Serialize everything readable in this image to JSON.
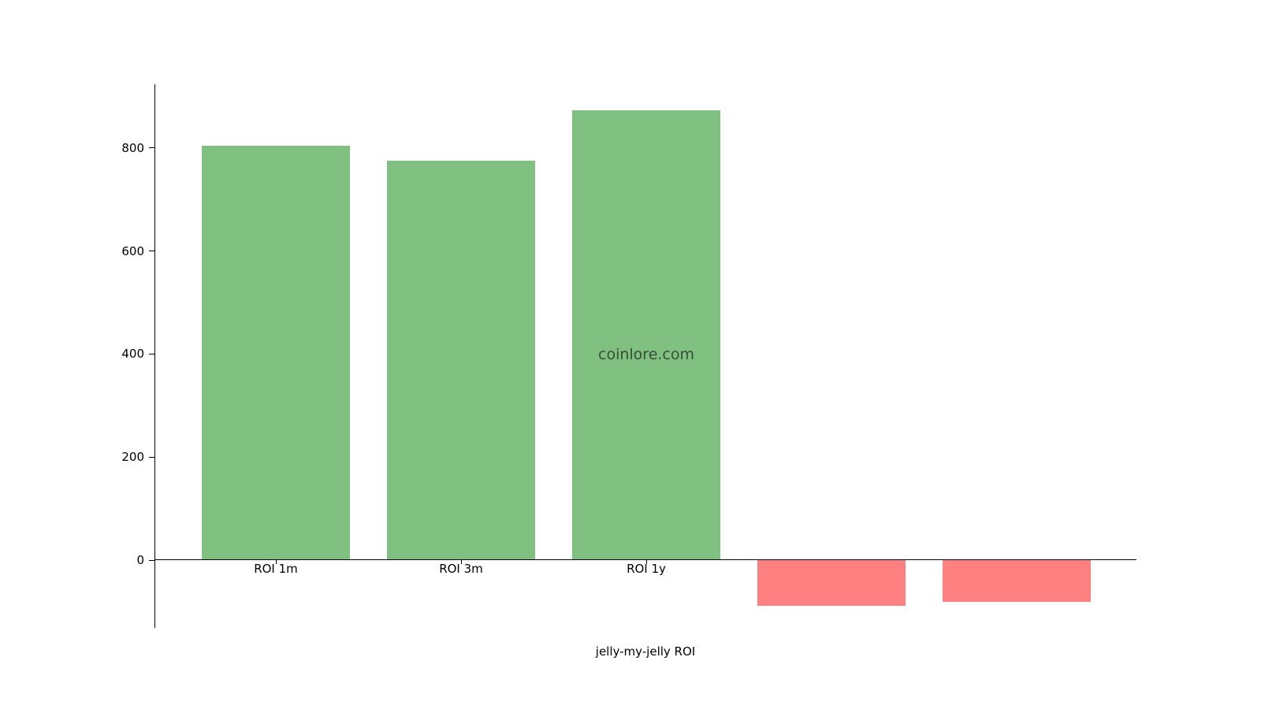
{
  "chart_data": {
    "type": "bar",
    "categories": [
      "ROI 1m",
      "ROI 3m",
      "ROI 1y",
      "",
      ""
    ],
    "values": [
      805,
      775,
      874,
      -88,
      -81
    ],
    "series": [
      {
        "name": "ROI",
        "values": [
          805,
          775,
          874,
          -88,
          -81
        ]
      }
    ],
    "title": "",
    "xlabel": "jelly-my-jelly ROI",
    "ylabel": "",
    "yticks": [
      0,
      200,
      400,
      600,
      800
    ],
    "ylim": [
      -130,
      925
    ],
    "grid": false,
    "legend": null,
    "watermark": "coinlore.com",
    "positive_color": "#80c080",
    "negative_color": "#ff8080",
    "axis_color": "#000000",
    "text_color": "#000000"
  }
}
